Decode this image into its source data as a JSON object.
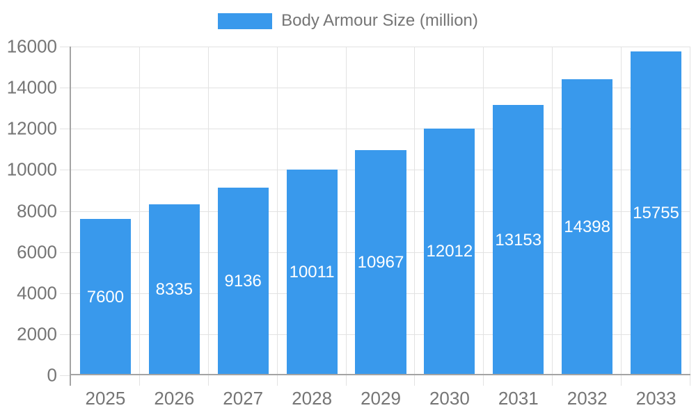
{
  "colors": {
    "bar": "#3999EC",
    "bar_label": "#FFFFFF",
    "grid": "#E2E2E2",
    "axis": "#A3A3A3",
    "text": "#757575",
    "background": "#FFFFFF"
  },
  "chart_data": {
    "type": "bar",
    "title": "",
    "series_name": "Body Armour Size (million)",
    "categories": [
      "2025",
      "2026",
      "2027",
      "2028",
      "2029",
      "2030",
      "2031",
      "2032",
      "2033"
    ],
    "values": [
      7600,
      8335,
      9136,
      10011,
      10967,
      12012,
      13153,
      14398,
      15755
    ],
    "xlabel": "",
    "ylabel": "",
    "ylim": [
      0,
      16000
    ],
    "yticks": [
      0,
      2000,
      4000,
      6000,
      8000,
      10000,
      12000,
      14000,
      16000
    ],
    "grid": true,
    "legend_position": "top-center",
    "bar_labels_visible": true,
    "bar_label_placement": "inside-center"
  }
}
